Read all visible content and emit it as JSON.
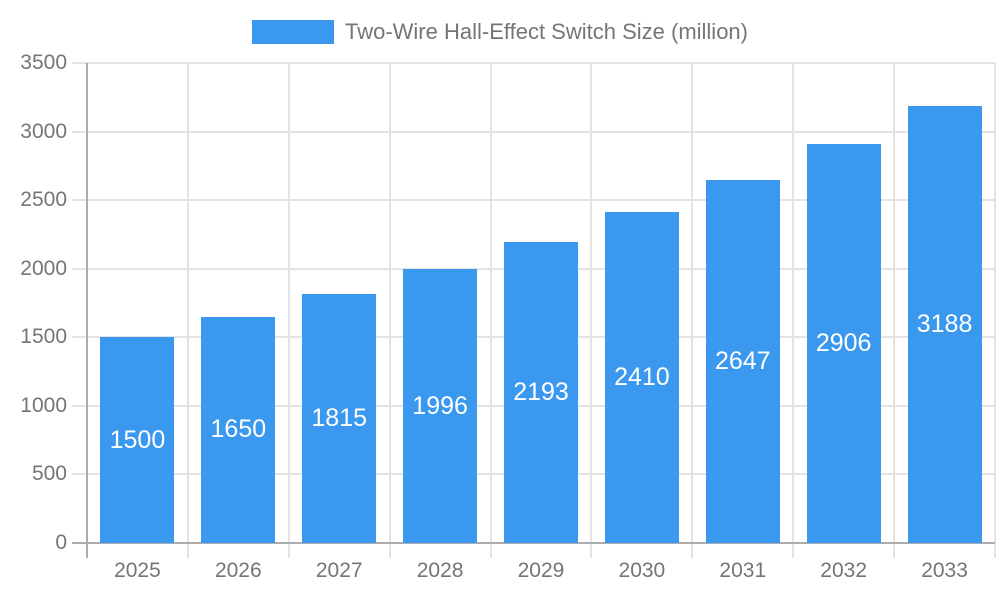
{
  "colors": {
    "bar": "#3A99EE",
    "grid": "#E3E3E3",
    "axis": "#ACACAC",
    "text": "#757575",
    "value_label": "#FFFFFF",
    "background": "#FFFFFF"
  },
  "legend": {
    "label": "Two-Wire Hall-Effect Switch Size (million)"
  },
  "chart_data": {
    "type": "bar",
    "title": "Two-Wire Hall-Effect Switch Size (million)",
    "categories": [
      "2025",
      "2026",
      "2027",
      "2028",
      "2029",
      "2030",
      "2031",
      "2032",
      "2033"
    ],
    "values": [
      1500,
      1650,
      1815,
      1996,
      2193,
      2410,
      2647,
      2906,
      3188
    ],
    "xlabel": "",
    "ylabel": "",
    "ylim": [
      0,
      3500
    ],
    "yticks": [
      0,
      500,
      1000,
      1500,
      2000,
      2500,
      3000,
      3500
    ],
    "grid": true,
    "legend_position": "top-center",
    "value_labels": "inside-center"
  }
}
